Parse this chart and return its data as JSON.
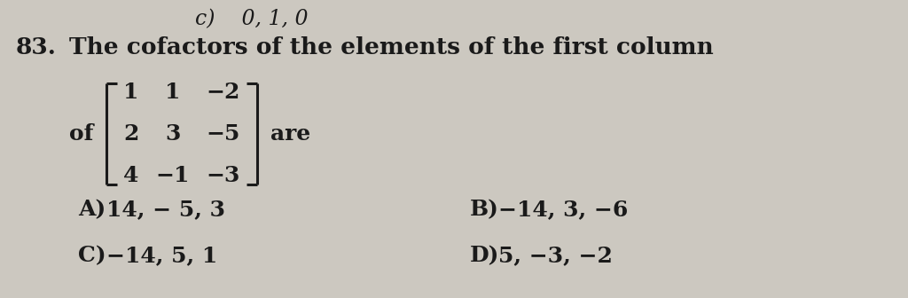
{
  "background_color": "#ccc8c0",
  "question_number": "83.",
  "question_text": "The cofactors of the elements of the first column",
  "of_text": "of",
  "are_text": "are",
  "matrix": [
    [
      "1",
      "1",
      "−2"
    ],
    [
      "2",
      "3",
      "−5"
    ],
    [
      "4",
      "−1",
      "−3"
    ]
  ],
  "options": [
    {
      "label": "A)",
      "text": "14, − 5, 3"
    },
    {
      "label": "B)",
      "text": "−14, 3, −6"
    },
    {
      "label": "C)",
      "text": "−14, 5, 1"
    },
    {
      "label": "D)",
      "text": "5, −3, −2"
    }
  ],
  "top_text": "c)    0, 1, 0",
  "text_color": "#1a1a1a",
  "fs_title": 19,
  "fs_matrix": 18,
  "fs_options": 18
}
